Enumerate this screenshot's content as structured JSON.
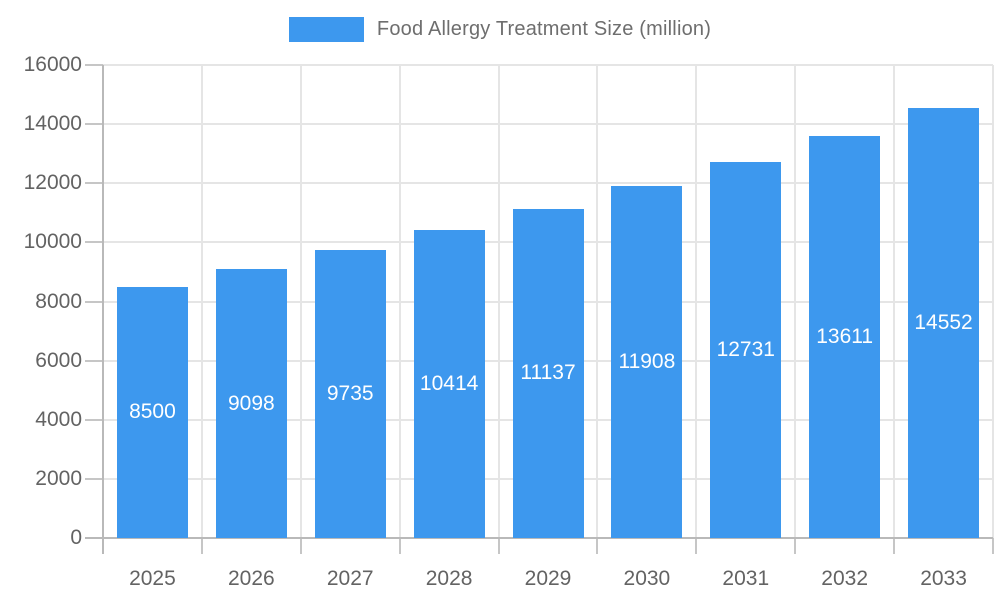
{
  "legend": {
    "label": "Food Allergy Treatment Size (million)",
    "swatch_color": "#3D98EE"
  },
  "chart_data": {
    "type": "bar",
    "title": "Food Allergy Treatment Size (million)",
    "categories": [
      "2025",
      "2026",
      "2027",
      "2028",
      "2029",
      "2030",
      "2031",
      "2032",
      "2033"
    ],
    "series": [
      {
        "name": "Food Allergy Treatment Size (million)",
        "values": [
          8500,
          9098,
          9735,
          10414,
          11137,
          11908,
          12731,
          13611,
          14552
        ]
      }
    ],
    "xlabel": "",
    "ylabel": "",
    "ylim": [
      0,
      16000
    ],
    "yticks": [
      0,
      2000,
      4000,
      6000,
      8000,
      10000,
      12000,
      14000,
      16000
    ],
    "grid": true,
    "legend_position": "top",
    "value_labels": "inside-center",
    "colors": {
      "bar": "#3D98EE",
      "value_label": "#ffffff",
      "axis_text": "#636363",
      "legend_text": "#6e6e6e",
      "gridline": "#e5e5e5",
      "axis_line": "#b9b9b9",
      "tick": "#c6c6c6",
      "background": "#ffffff"
    }
  }
}
